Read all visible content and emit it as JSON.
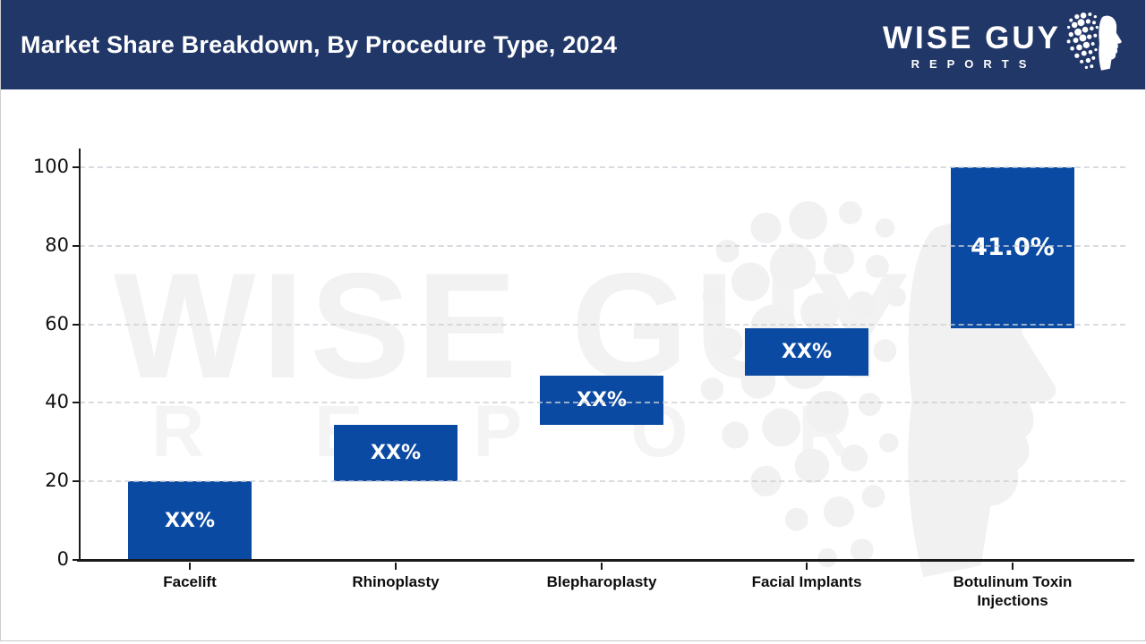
{
  "header": {
    "title": "Market Share Breakdown, By Procedure Type, 2024"
  },
  "logo": {
    "name_top": "WISE GUY",
    "name_bottom": "REPORTS"
  },
  "watermark": {
    "line1": "WISE GUY",
    "line2": "R E P O R T S"
  },
  "colors": {
    "header_bg": "#213768",
    "bar": "#0b4aa2",
    "bar_label": "#ffffff",
    "grid": "#d9d9d9",
    "axis": "#1a1a1a",
    "tick_text": "#111111",
    "watermark": "#f2f2f2",
    "page_border": "#cfcfcf"
  },
  "chart_data": {
    "type": "bar",
    "subtype": "waterfall",
    "title": "Market Share Breakdown, By Procedure Type, 2024",
    "xlabel": "",
    "ylabel": "",
    "ylim": [
      0,
      100
    ],
    "yticks": [
      0,
      20,
      40,
      60,
      80,
      100
    ],
    "grid": "horizontal-dashed",
    "legend": "none",
    "categories": [
      "Facelift",
      "Rhinoplasty",
      "Blepharoplasty",
      "Facial Implants",
      "Botulinum Toxin Injections"
    ],
    "bars": [
      {
        "category": "Facelift",
        "start": 0,
        "end": 20,
        "label": "XX%"
      },
      {
        "category": "Rhinoplasty",
        "start": 20,
        "end": 34.5,
        "label": "XX%"
      },
      {
        "category": "Blepharoplasty",
        "start": 34.5,
        "end": 47,
        "label": "XX%"
      },
      {
        "category": "Facial Implants",
        "start": 47,
        "end": 59,
        "label": "XX%"
      },
      {
        "category": "Botulinum Toxin Injections",
        "start": 59,
        "end": 100,
        "label": "41.0%",
        "value": 41.0
      }
    ]
  }
}
